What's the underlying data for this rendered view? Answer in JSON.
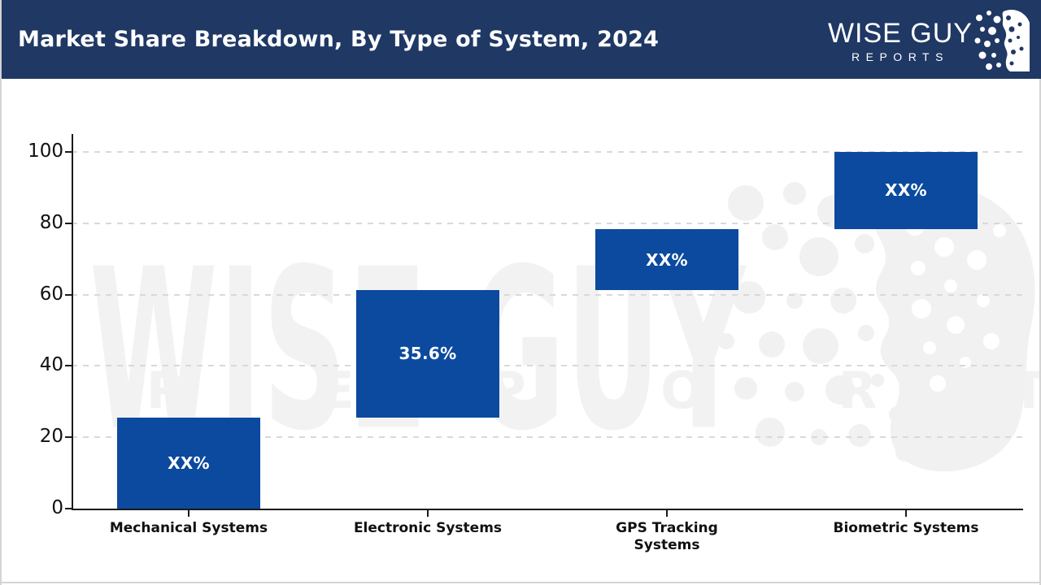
{
  "header": {
    "title": "Market Share Breakdown, By Type of System, 2024",
    "logo": {
      "line1": "WISE GUY",
      "line2": "REPORTS"
    }
  },
  "watermark": {
    "line1": "WISE GUY",
    "line2": "R E P O R T S"
  },
  "colors": {
    "header_bg": "#1f3864",
    "bar_fill": "#0b4a9e",
    "gridline": "#d9d9d9",
    "watermark": "#f2f2f2"
  },
  "chart_data": {
    "type": "bar",
    "subtype": "waterfall",
    "title": "Market Share Breakdown, By Type of System, 2024",
    "xlabel": "",
    "ylabel": "",
    "ylim": [
      0,
      105
    ],
    "yticks": [
      0,
      20,
      40,
      60,
      80,
      100
    ],
    "grid": "horizontal-dashed",
    "legend": "none",
    "categories": [
      "Mechanical Systems",
      "Electronic Systems",
      "GPS Tracking Systems",
      "Biometric Systems"
    ],
    "category_display": [
      "Mechanical Systems",
      "Electronic Systems",
      "GPS Tracking\nSystems",
      "Biometric Systems"
    ],
    "bars": [
      {
        "category": "Mechanical Systems",
        "base": 0,
        "top": 25.6,
        "size_label": "XX%"
      },
      {
        "category": "Electronic Systems",
        "base": 25.6,
        "top": 61.2,
        "size_label": "35.6%"
      },
      {
        "category": "GPS Tracking Systems",
        "base": 61.2,
        "top": 78.4,
        "size_label": "XX%"
      },
      {
        "category": "Biometric Systems",
        "base": 78.4,
        "top": 100,
        "size_label": "XX%"
      }
    ]
  }
}
